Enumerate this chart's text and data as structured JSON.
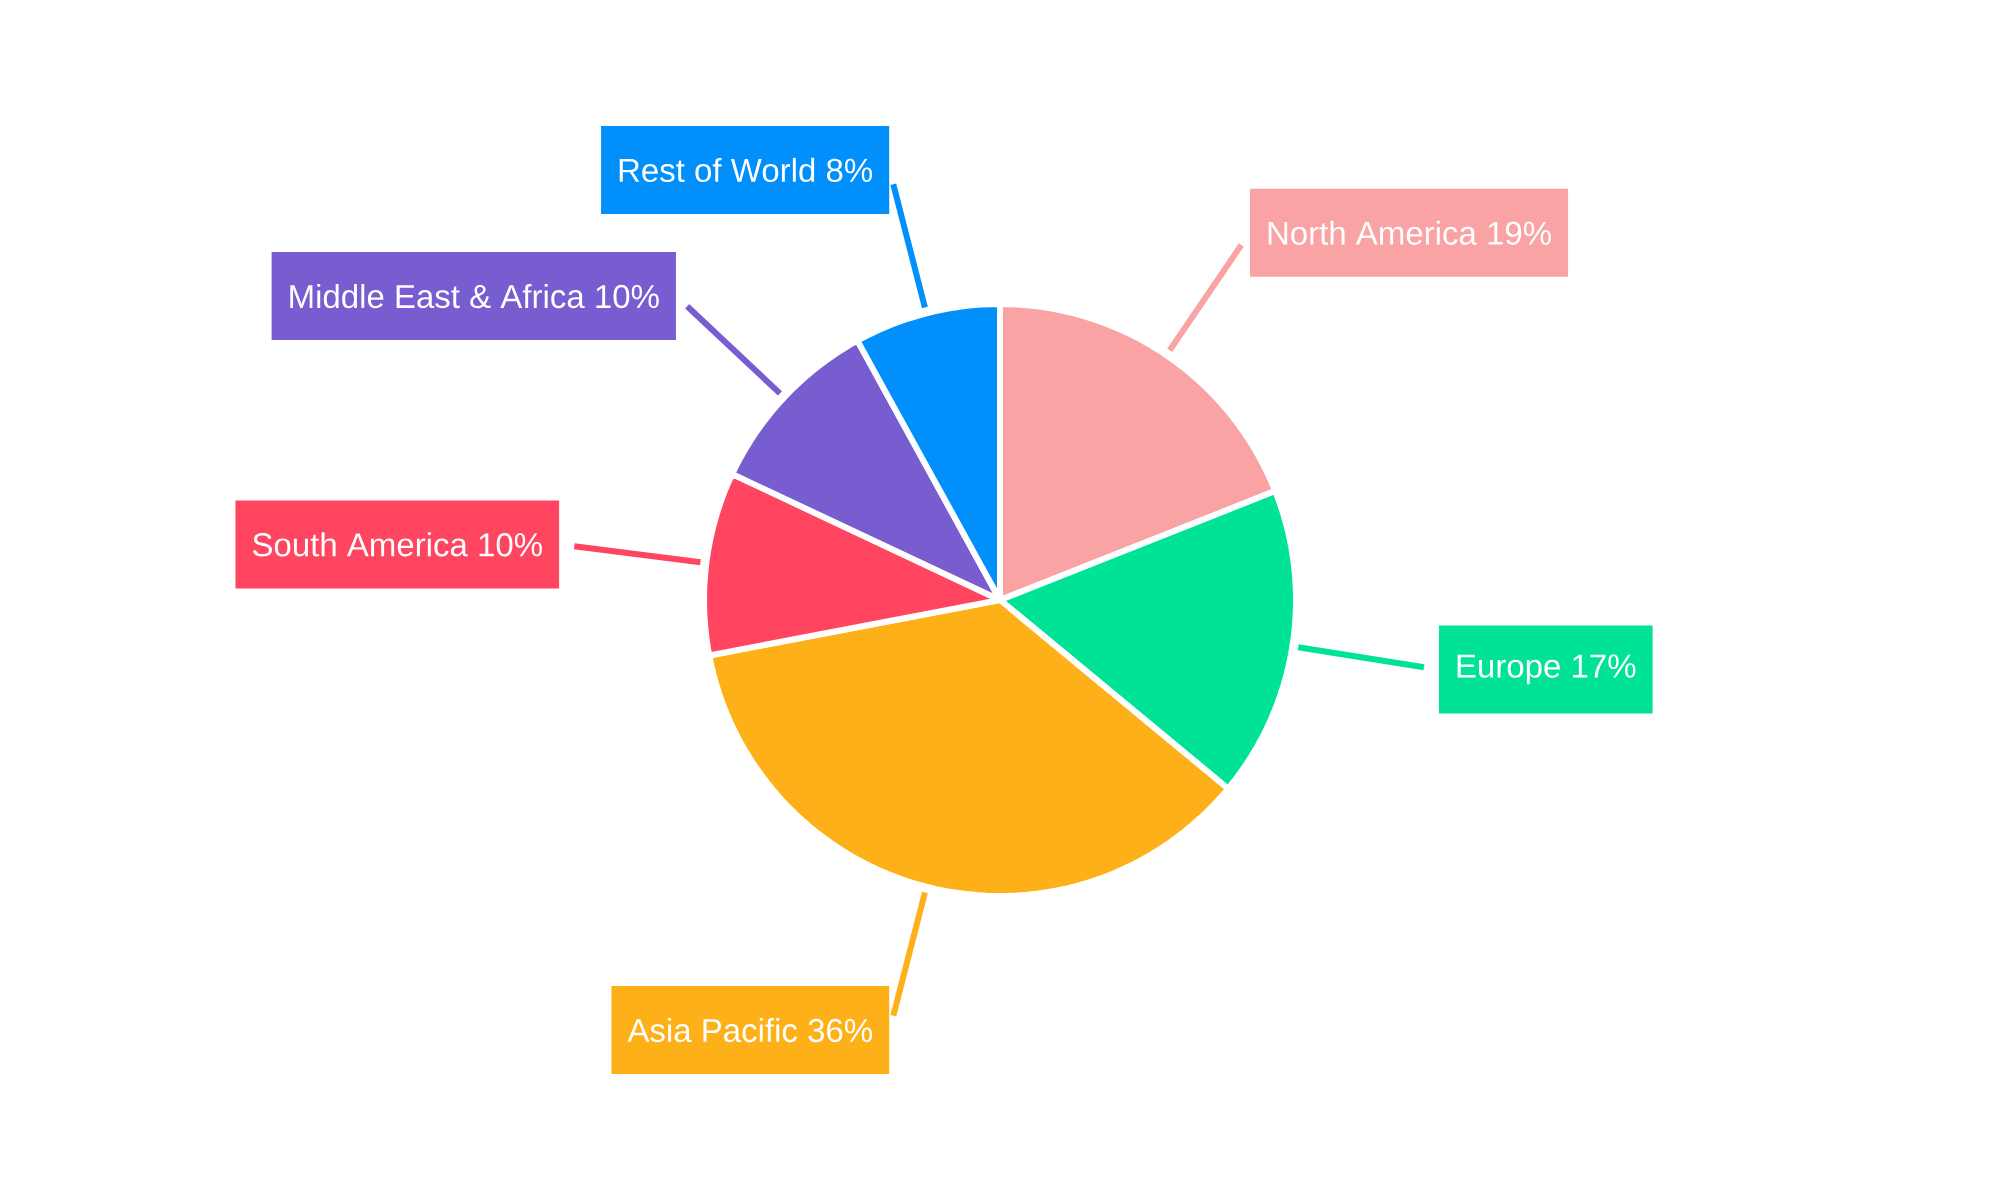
{
  "chart_data": {
    "type": "pie",
    "categories": [
      "North America",
      "Europe",
      "Asia Pacific",
      "South America",
      "Middle East & Africa",
      "Rest of World"
    ],
    "values": [
      19,
      17,
      36,
      10,
      10,
      8
    ],
    "value_labels": [
      "19%",
      "17%",
      "36%",
      "10%",
      "10%",
      "8%"
    ],
    "colors": [
      "#f9a3a4",
      "#00e396",
      "#feb019",
      "#ff4560",
      "#775dd0",
      "#008ffb"
    ]
  }
}
